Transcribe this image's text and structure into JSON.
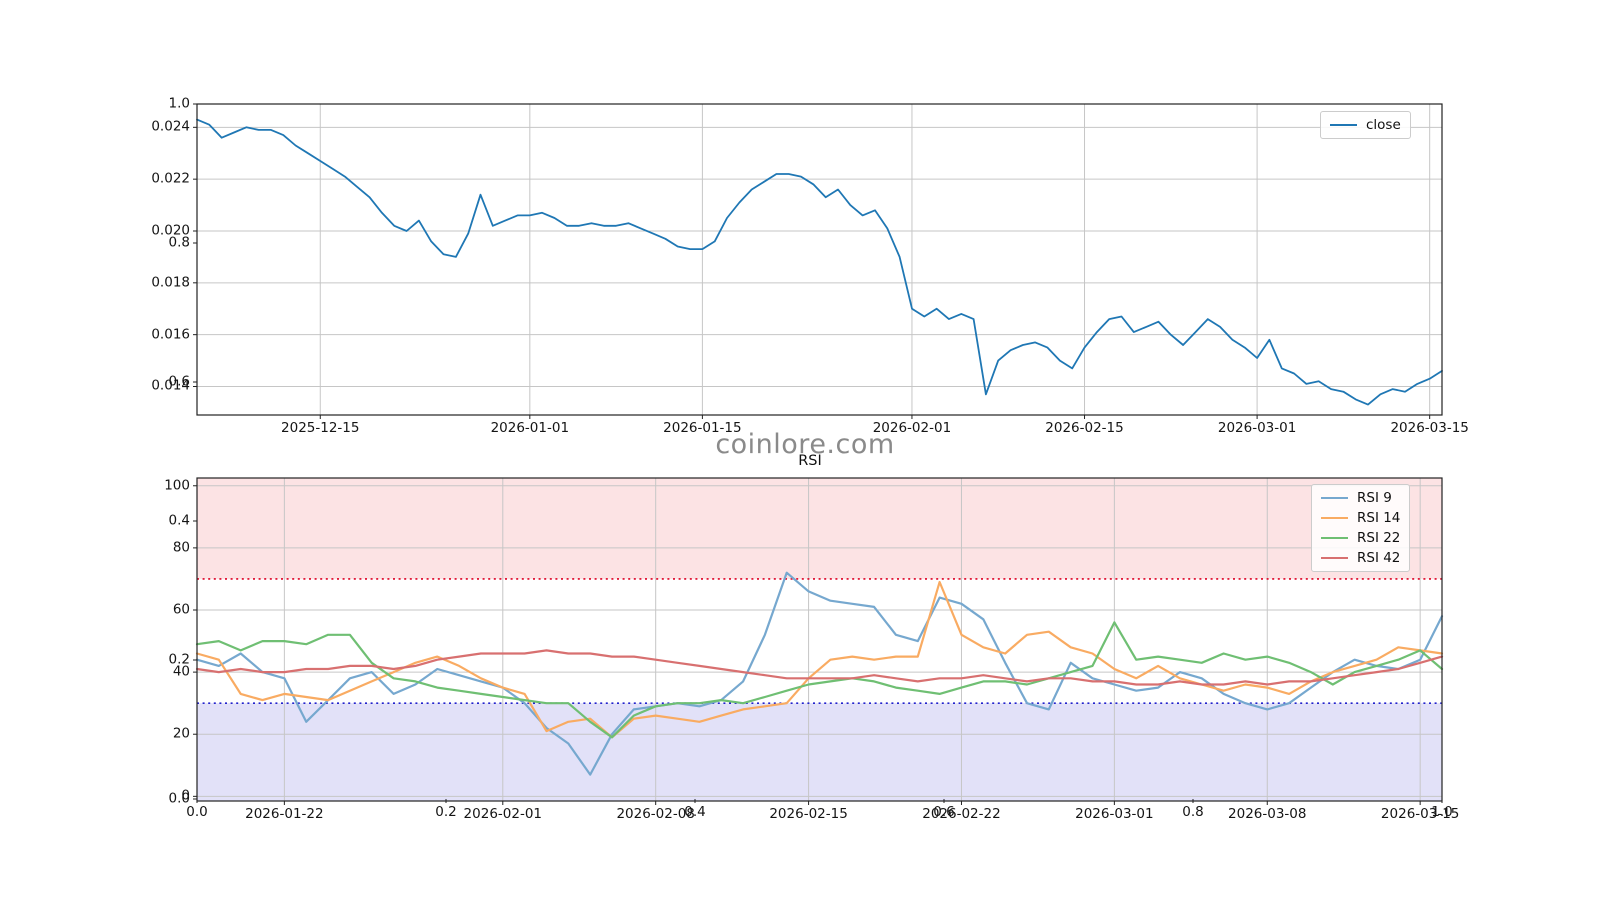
{
  "watermark": {
    "text": "coinlore.com",
    "color": "#8a8a8a"
  },
  "chart_data": [
    {
      "type": "line",
      "title": "",
      "x_start": "2025-12-05",
      "x_freq": "daily",
      "x_tick_labels": [
        "2025-12-15",
        "2026-01-01",
        "2026-01-15",
        "2026-02-01",
        "2026-02-15",
        "2026-03-01",
        "2026-03-15"
      ],
      "y_ticks": [
        0.014,
        0.016,
        0.018,
        0.02,
        0.022,
        0.024
      ],
      "ylim": [
        0.0129,
        0.0249
      ],
      "grid": true,
      "legend_position": "upper right",
      "series": [
        {
          "name": "close",
          "color": "#1f77b4",
          "values": [
            0.0243,
            0.0241,
            0.0236,
            0.0238,
            0.024,
            0.0239,
            0.0239,
            0.0237,
            0.0233,
            0.023,
            0.0227,
            0.0224,
            0.0221,
            0.0217,
            0.0213,
            0.0207,
            0.0202,
            0.02,
            0.0204,
            0.0196,
            0.0191,
            0.019,
            0.0199,
            0.0214,
            0.0202,
            0.0204,
            0.0206,
            0.0206,
            0.0207,
            0.0205,
            0.0202,
            0.0202,
            0.0203,
            0.0202,
            0.0202,
            0.0203,
            0.0201,
            0.0199,
            0.0197,
            0.0194,
            0.0193,
            0.0193,
            0.0196,
            0.0205,
            0.0211,
            0.0216,
            0.0219,
            0.0222,
            0.0222,
            0.0221,
            0.0218,
            0.0213,
            0.0216,
            0.021,
            0.0206,
            0.0208,
            0.0201,
            0.019,
            0.017,
            0.0167,
            0.017,
            0.0166,
            0.0168,
            0.0166,
            0.0137,
            0.015,
            0.0154,
            0.0156,
            0.0157,
            0.0155,
            0.015,
            0.0147,
            0.0155,
            0.0161,
            0.0166,
            0.0167,
            0.0161,
            0.0163,
            0.0165,
            0.016,
            0.0156,
            0.0161,
            0.0166,
            0.0163,
            0.0158,
            0.0155,
            0.0151,
            0.0158,
            0.0147,
            0.0145,
            0.0141,
            0.0142,
            0.0139,
            0.0138,
            0.0135,
            0.0133,
            0.0137,
            0.0139,
            0.0138,
            0.0141,
            0.0143,
            0.0146
          ]
        }
      ]
    },
    {
      "type": "line",
      "title": "RSI",
      "x_start": "2026-01-18",
      "x_freq": "daily",
      "x_tick_labels": [
        "2026-01-22",
        "2026-02-01",
        "2026-02-08",
        "2026-02-15",
        "2026-02-22",
        "2026-03-01",
        "2026-03-08",
        "2026-03-15"
      ],
      "y_ticks": [
        0,
        20,
        40,
        60,
        80,
        100
      ],
      "ylim": [
        -1.5,
        102.5
      ],
      "grid": true,
      "legend_position": "upper right",
      "overbought": {
        "level": 70,
        "line_color": "#dd0022",
        "band_color": "#fce3e4"
      },
      "oversold": {
        "level": 30,
        "line_color": "#2222cc",
        "band_color": "#e2e1f8"
      },
      "series": [
        {
          "name": "RSI 9",
          "color": "#76a8cf",
          "values": [
            44,
            42,
            46,
            40,
            38,
            24,
            31,
            38,
            40,
            33,
            36,
            41,
            39,
            37,
            35,
            30,
            22,
            17,
            7,
            20,
            28,
            29,
            30,
            29,
            31,
            37,
            52,
            72,
            66,
            63,
            62,
            61,
            52,
            50,
            64,
            62,
            57,
            43,
            30,
            28,
            43,
            38,
            36,
            34,
            35,
            40,
            38,
            33,
            30,
            28,
            30,
            35,
            40,
            44,
            42,
            41,
            44,
            58
          ]
        },
        {
          "name": "RSI 14",
          "color": "#f9ab62",
          "values": [
            46,
            44,
            33,
            31,
            33,
            32,
            31,
            34,
            37,
            40,
            43,
            45,
            42,
            38,
            35,
            33,
            21,
            24,
            25,
            19,
            25,
            26,
            25,
            24,
            26,
            28,
            29,
            30,
            38,
            44,
            45,
            44,
            45,
            45,
            69,
            52,
            48,
            46,
            52,
            53,
            48,
            46,
            41,
            38,
            42,
            38,
            36,
            34,
            36,
            35,
            33,
            37,
            40,
            42,
            44,
            48,
            47,
            46
          ]
        },
        {
          "name": "RSI 22",
          "color": "#6fbf73",
          "values": [
            49,
            50,
            47,
            50,
            50,
            49,
            52,
            52,
            43,
            38,
            37,
            35,
            34,
            33,
            32,
            31,
            30,
            30,
            24,
            19,
            26,
            29,
            30,
            30,
            31,
            30,
            32,
            34,
            36,
            37,
            38,
            37,
            35,
            34,
            33,
            35,
            37,
            37,
            36,
            38,
            40,
            42,
            56,
            44,
            45,
            44,
            43,
            46,
            44,
            45,
            43,
            40,
            36,
            40,
            42,
            44,
            47,
            41
          ]
        },
        {
          "name": "RSI 42",
          "color": "#d87070",
          "values": [
            41,
            40,
            41,
            40,
            40,
            41,
            41,
            42,
            42,
            41,
            42,
            44,
            45,
            46,
            46,
            46,
            47,
            46,
            46,
            45,
            45,
            44,
            43,
            42,
            41,
            40,
            39,
            38,
            38,
            38,
            38,
            39,
            38,
            37,
            38,
            38,
            39,
            38,
            37,
            38,
            38,
            37,
            37,
            36,
            36,
            37,
            36,
            36,
            37,
            36,
            37,
            37,
            38,
            39,
            40,
            41,
            43,
            45
          ]
        }
      ]
    },
    {
      "type": "overlay-empty-axis",
      "x_ticks": [
        0.0,
        0.2,
        0.4,
        0.6,
        0.8,
        1.0
      ],
      "y_ticks": [
        0.0,
        0.2,
        0.4,
        0.6,
        0.8,
        1.0
      ]
    }
  ]
}
